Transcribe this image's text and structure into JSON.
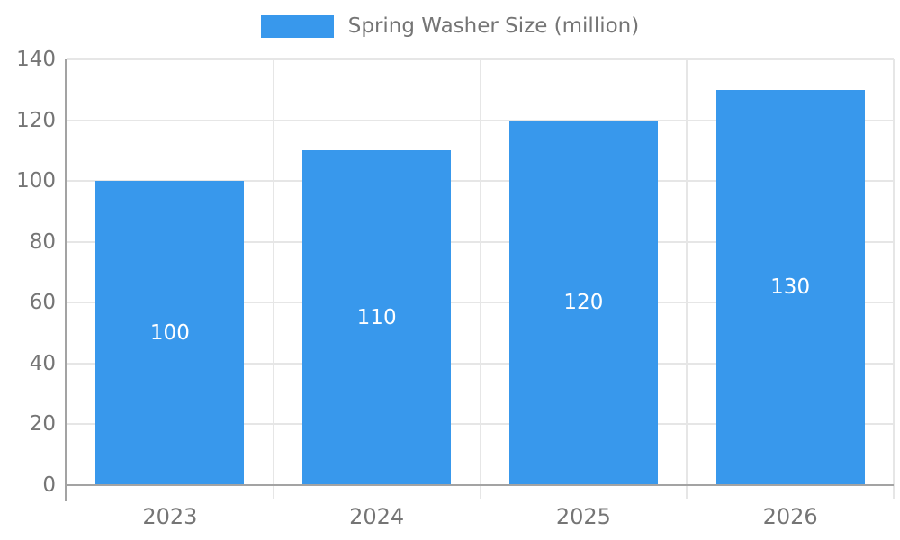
{
  "chart_data": {
    "type": "bar",
    "title": "",
    "legend_label": "Spring Washer Size (million)",
    "legend_position": "top",
    "categories": [
      "2023",
      "2024",
      "2025",
      "2026"
    ],
    "series": [
      {
        "name": "Spring Washer Size (million)",
        "values": [
          100,
          110,
          120,
          130
        ]
      }
    ],
    "data_labels": [
      "100",
      "110",
      "120",
      "130"
    ],
    "xlabel": "",
    "ylabel": "",
    "ylim": [
      0,
      140
    ],
    "yticks": [
      0,
      20,
      40,
      60,
      80,
      100,
      120,
      140
    ],
    "grid": true,
    "colors": {
      "bar": "#3898ec",
      "data_label": "#ffffff",
      "axis_text": "#757575",
      "axis_line": "#a3a3a3",
      "gridline": "#e6e6e6",
      "background": "#ffffff"
    }
  }
}
